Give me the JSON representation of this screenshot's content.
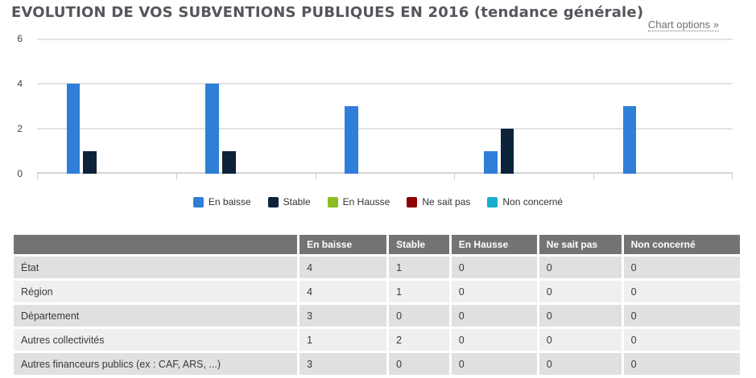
{
  "title": "EVOLUTION DE VOS SUBVENTIONS PUBLIQUES EN 2016 (tendance générale)",
  "chart_options_label": "Chart options »",
  "colors": {
    "en_baisse": "#2f7ed8",
    "stable": "#0d233a",
    "en_hausse": "#8bbc21",
    "ne_sait_pas": "#910000",
    "non_concerne": "#1aadce",
    "table_header_bg": "#747474",
    "row_dark": "#e0e0e0",
    "row_light": "#efefef",
    "grid_line": "#e3e3e3",
    "axis_line": "#d4d4d4"
  },
  "chart_data": {
    "type": "bar",
    "title": "EVOLUTION DE VOS SUBVENTIONS PUBLIQUES EN 2016 (tendance générale)",
    "categories": [
      "État",
      "Région",
      "Département",
      "Autres collectivités",
      "Autres financeurs publics (ex : CAF, ARS, ...)"
    ],
    "series": [
      {
        "name": "En baisse",
        "color": "#2f7ed8",
        "values": [
          4,
          4,
          3,
          1,
          3
        ]
      },
      {
        "name": "Stable",
        "color": "#0d233a",
        "values": [
          1,
          1,
          0,
          2,
          0
        ]
      },
      {
        "name": "En Hausse",
        "color": "#8bbc21",
        "values": [
          0,
          0,
          0,
          0,
          0
        ]
      },
      {
        "name": "Ne sait pas",
        "color": "#910000",
        "values": [
          0,
          0,
          0,
          0,
          0
        ]
      },
      {
        "name": "Non concerné",
        "color": "#1aadce",
        "values": [
          0,
          0,
          0,
          0,
          0
        ]
      }
    ],
    "xlabel": "",
    "ylabel": "",
    "ylim": [
      0,
      6
    ],
    "yticks": [
      0,
      2,
      4,
      6
    ],
    "grid": "horizontal",
    "legend_position": "bottom"
  },
  "table": {
    "headers": [
      "",
      "En baisse",
      "Stable",
      "En Hausse",
      "Ne sait pas",
      "Non concerné"
    ],
    "rows": [
      {
        "label": "État",
        "values": [
          4,
          1,
          0,
          0,
          0
        ]
      },
      {
        "label": "Région",
        "values": [
          4,
          1,
          0,
          0,
          0
        ]
      },
      {
        "label": "Département",
        "values": [
          3,
          0,
          0,
          0,
          0
        ]
      },
      {
        "label": "Autres collectivités",
        "values": [
          1,
          2,
          0,
          0,
          0
        ]
      },
      {
        "label": "Autres financeurs publics (ex : CAF, ARS, ...)",
        "values": [
          3,
          0,
          0,
          0,
          0
        ]
      }
    ]
  }
}
